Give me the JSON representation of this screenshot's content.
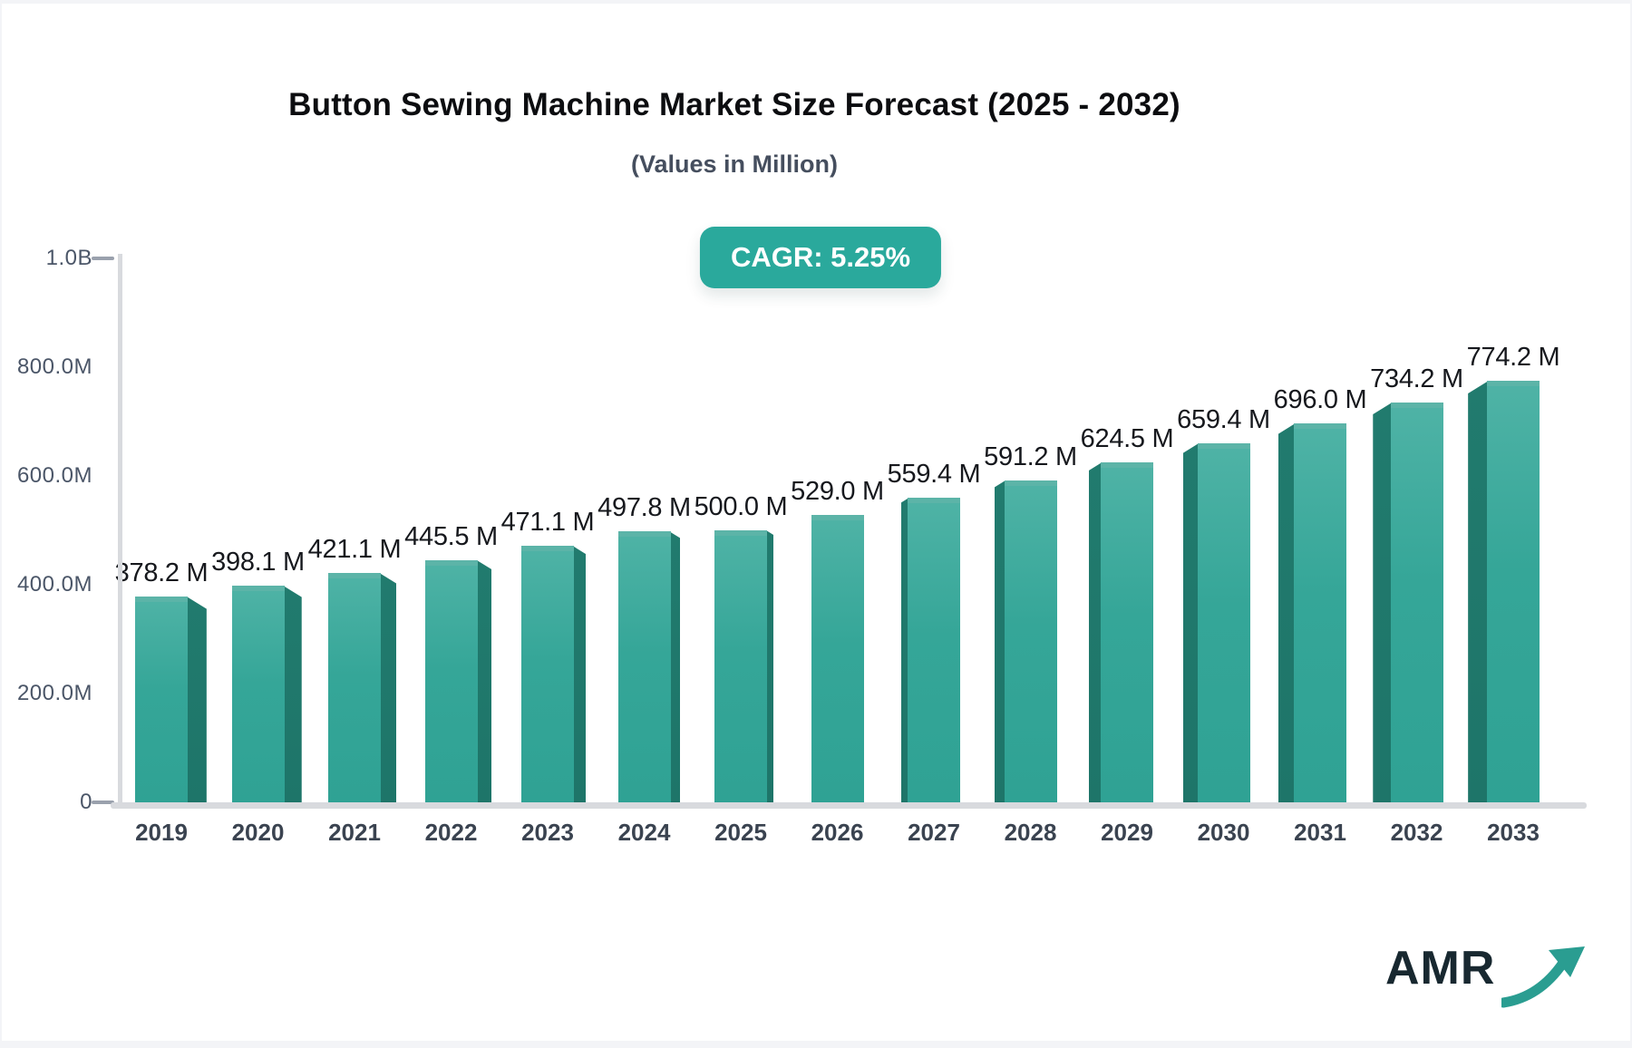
{
  "header": {
    "title": "Button Sewing Machine Market Size Forecast (2025 - 2032)",
    "subtitle": "(Values in Million)",
    "cagr_label": "CAGR: 5.25%"
  },
  "branding": {
    "logo_text": "AMR"
  },
  "colors": {
    "badge_teal": "#2aa99c",
    "bar_front_top": "#4fb3a6",
    "bar_front_bottom": "#2fa294",
    "bar_side": "#1e7569",
    "bar_top_band": "#5cb4a8",
    "axis_gray": "#d8dade",
    "tick_gray": "#9aa1ad",
    "y_label_color": "#4b5668",
    "x_label_color": "#3a4350",
    "value_label_color": "#16181d",
    "logo_navy": "#182830",
    "logo_teal": "#2a9d91"
  },
  "chart_data": {
    "type": "bar",
    "title": "Button Sewing Machine Market Size Forecast (2025 - 2032)",
    "subtitle": "(Values in Million)",
    "cagr_percent": 5.25,
    "categories": [
      "2019",
      "2020",
      "2021",
      "2022",
      "2023",
      "2024",
      "2025",
      "2026",
      "2027",
      "2028",
      "2029",
      "2030",
      "2031",
      "2032",
      "2033"
    ],
    "values": [
      378.2,
      398.1,
      421.1,
      445.5,
      471.1,
      497.8,
      500.0,
      529.0,
      559.4,
      591.2,
      624.5,
      659.4,
      696.0,
      734.2,
      774.2
    ],
    "value_labels": [
      "378.2 M",
      "398.1 M",
      "421.1 M",
      "445.5 M",
      "471.1 M",
      "497.8 M",
      "500.0 M",
      "529.0 M",
      "559.4 M",
      "591.2 M",
      "624.5 M",
      "659.4 M",
      "696.0 M",
      "734.2 M",
      "774.2 M"
    ],
    "xlabel": "",
    "ylabel": "",
    "ylim": [
      0,
      1000
    ],
    "grid": false,
    "legend": "none",
    "y_ticks": [
      {
        "label": "1.0B",
        "value": 1000,
        "dash": true
      },
      {
        "label": "800.0M",
        "value": 800,
        "dash": false
      },
      {
        "label": "600.0M",
        "value": 600,
        "dash": false
      },
      {
        "label": "400.0M",
        "value": 400,
        "dash": false
      },
      {
        "label": "200.0M",
        "value": 200,
        "dash": false
      },
      {
        "label": "0",
        "value": 0,
        "dash": true
      }
    ]
  }
}
